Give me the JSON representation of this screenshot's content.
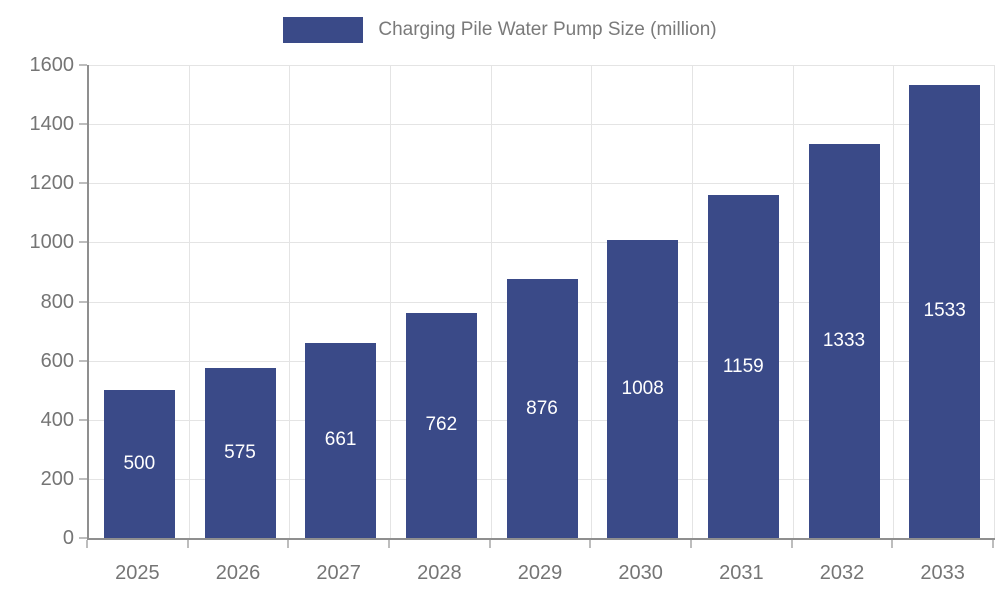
{
  "legend": {
    "label": "Charging Pile Water Pump Size (million)"
  },
  "chart_data": {
    "type": "bar",
    "title": "Charging Pile Water Pump Size (million)",
    "series_name": "Charging Pile Water Pump Size (million)",
    "categories": [
      "2025",
      "2026",
      "2027",
      "2028",
      "2029",
      "2030",
      "2031",
      "2032",
      "2033"
    ],
    "values": [
      500,
      575,
      661,
      762,
      876,
      1008,
      1159,
      1333,
      1533
    ],
    "xlabel": "",
    "ylabel": "",
    "ylim": [
      0,
      1600
    ],
    "ytick_step": 200,
    "ytick_labels": [
      "0",
      "200",
      "400",
      "600",
      "800",
      "1000",
      "1200",
      "1400",
      "1600"
    ],
    "grid": true,
    "legend_position": "top-center",
    "value_labels": "centered-inside-bars"
  },
  "colors": {
    "bar": "#3A4A88",
    "gridline": "#E4E4E4",
    "axis_line": "#8F8F8F",
    "tick_mark": "#BDBDBD",
    "tick_text": "#757575",
    "legend_text": "#7A7A7A",
    "value_label_text": "#FFFFFF",
    "background": "#FFFFFF"
  }
}
